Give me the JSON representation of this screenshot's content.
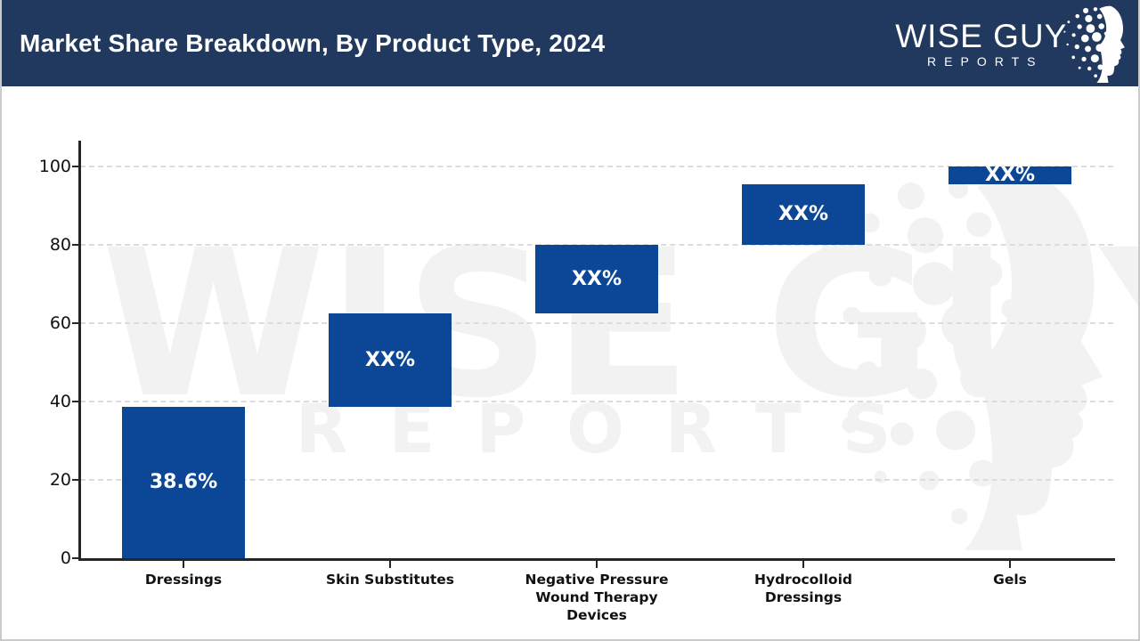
{
  "header": {
    "title": "Market Share Breakdown, By Product Type, 2024",
    "logo": {
      "line1": "WISE GUY",
      "line2": "REPORTS"
    }
  },
  "watermark": {
    "line1": "WISE GUY",
    "line2": "REPORTS"
  },
  "colors": {
    "header_bg": "#21395e",
    "title_text": "#ffffff",
    "bar_fill": "#0b4796",
    "bar_label": "#ffffff",
    "grid_line": "#dcdcdc",
    "axis_line": "#262626",
    "tick_label": "#111111",
    "watermark": "#f2f2f2",
    "page_border": "#cacaca"
  },
  "chart_data": {
    "type": "bar",
    "subtype": "waterfall",
    "title": "Market Share Breakdown, By Product Type, 2024",
    "categories": [
      "Dressings",
      "Skin Substitutes",
      "Negative Pressure Wound Therapy Devices",
      "Hydrocolloid Dressings",
      "Gels"
    ],
    "category_lines": [
      [
        "Dressings"
      ],
      [
        "Skin Substitutes"
      ],
      [
        "Negative Pressure",
        "Wound Therapy",
        "Devices"
      ],
      [
        "Hydrocolloid",
        "Dressings"
      ],
      [
        "Gels"
      ]
    ],
    "bars": [
      {
        "category": "Dressings",
        "start": 0,
        "end": 38.6,
        "label": "38.6%"
      },
      {
        "category": "Skin Substitutes",
        "start": 38.6,
        "end": 62.5,
        "label": "XX%"
      },
      {
        "category": "Negative Pressure Wound Therapy Devices",
        "start": 62.5,
        "end": 80,
        "label": "XX%"
      },
      {
        "category": "Hydrocolloid Dressings",
        "start": 80,
        "end": 95.5,
        "label": "XX%"
      },
      {
        "category": "Gels",
        "start": 95.5,
        "end": 100,
        "label": "XX%"
      }
    ],
    "yticks": [
      0,
      20,
      40,
      60,
      80,
      100
    ],
    "ylim": [
      0,
      106
    ],
    "xlabel": "",
    "ylabel": "",
    "grid": "horizontal-dashed",
    "legend": "none"
  }
}
